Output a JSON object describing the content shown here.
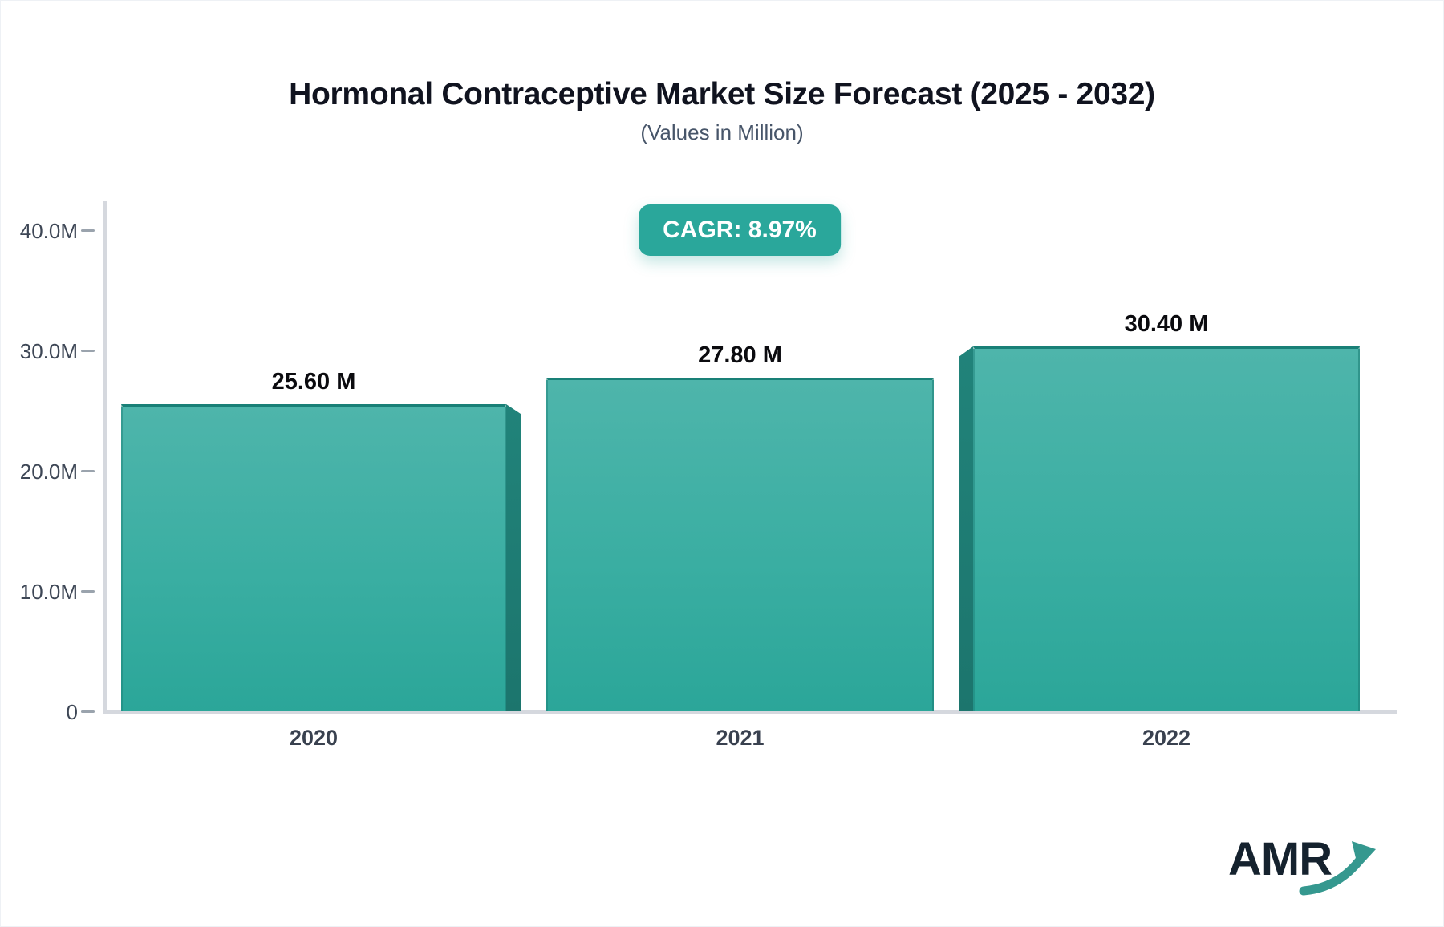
{
  "title": "Hormonal Contraceptive Market Size Forecast (2025 - 2032)",
  "subtitle": "(Values in Million)",
  "cagr_badge": {
    "label": "CAGR: 8.97%",
    "background": "#2aa79b",
    "text_color": "#ffffff"
  },
  "logo": {
    "text": "AMR",
    "text_color": "#15222e",
    "arrow_color": "#35988f"
  },
  "chart_data": {
    "type": "bar",
    "title": "Hormonal Contraceptive Market Size Forecast (2025 - 2032)",
    "subtitle": "(Values in Million)",
    "categories": [
      "2020",
      "2021",
      "2022"
    ],
    "values": [
      25.6,
      27.8,
      30.4
    ],
    "value_labels": [
      "25.60 M",
      "27.80 M",
      "30.40 M"
    ],
    "unit": "Million",
    "cagr": "8.97%",
    "ylim": [
      0,
      40
    ],
    "ytick_labels": [
      "0",
      "10.0M",
      "20.0M",
      "30.0M",
      "40.0M"
    ],
    "grid": false,
    "legend": false,
    "bar_color_top": "#4eb5ab",
    "bar_color_bottom": "#2ba699",
    "bar_edge_color": "#198077",
    "bevel_color": "#1c756d",
    "axis_color": "#d5d8de",
    "tick_text_color": "#3e4756"
  }
}
